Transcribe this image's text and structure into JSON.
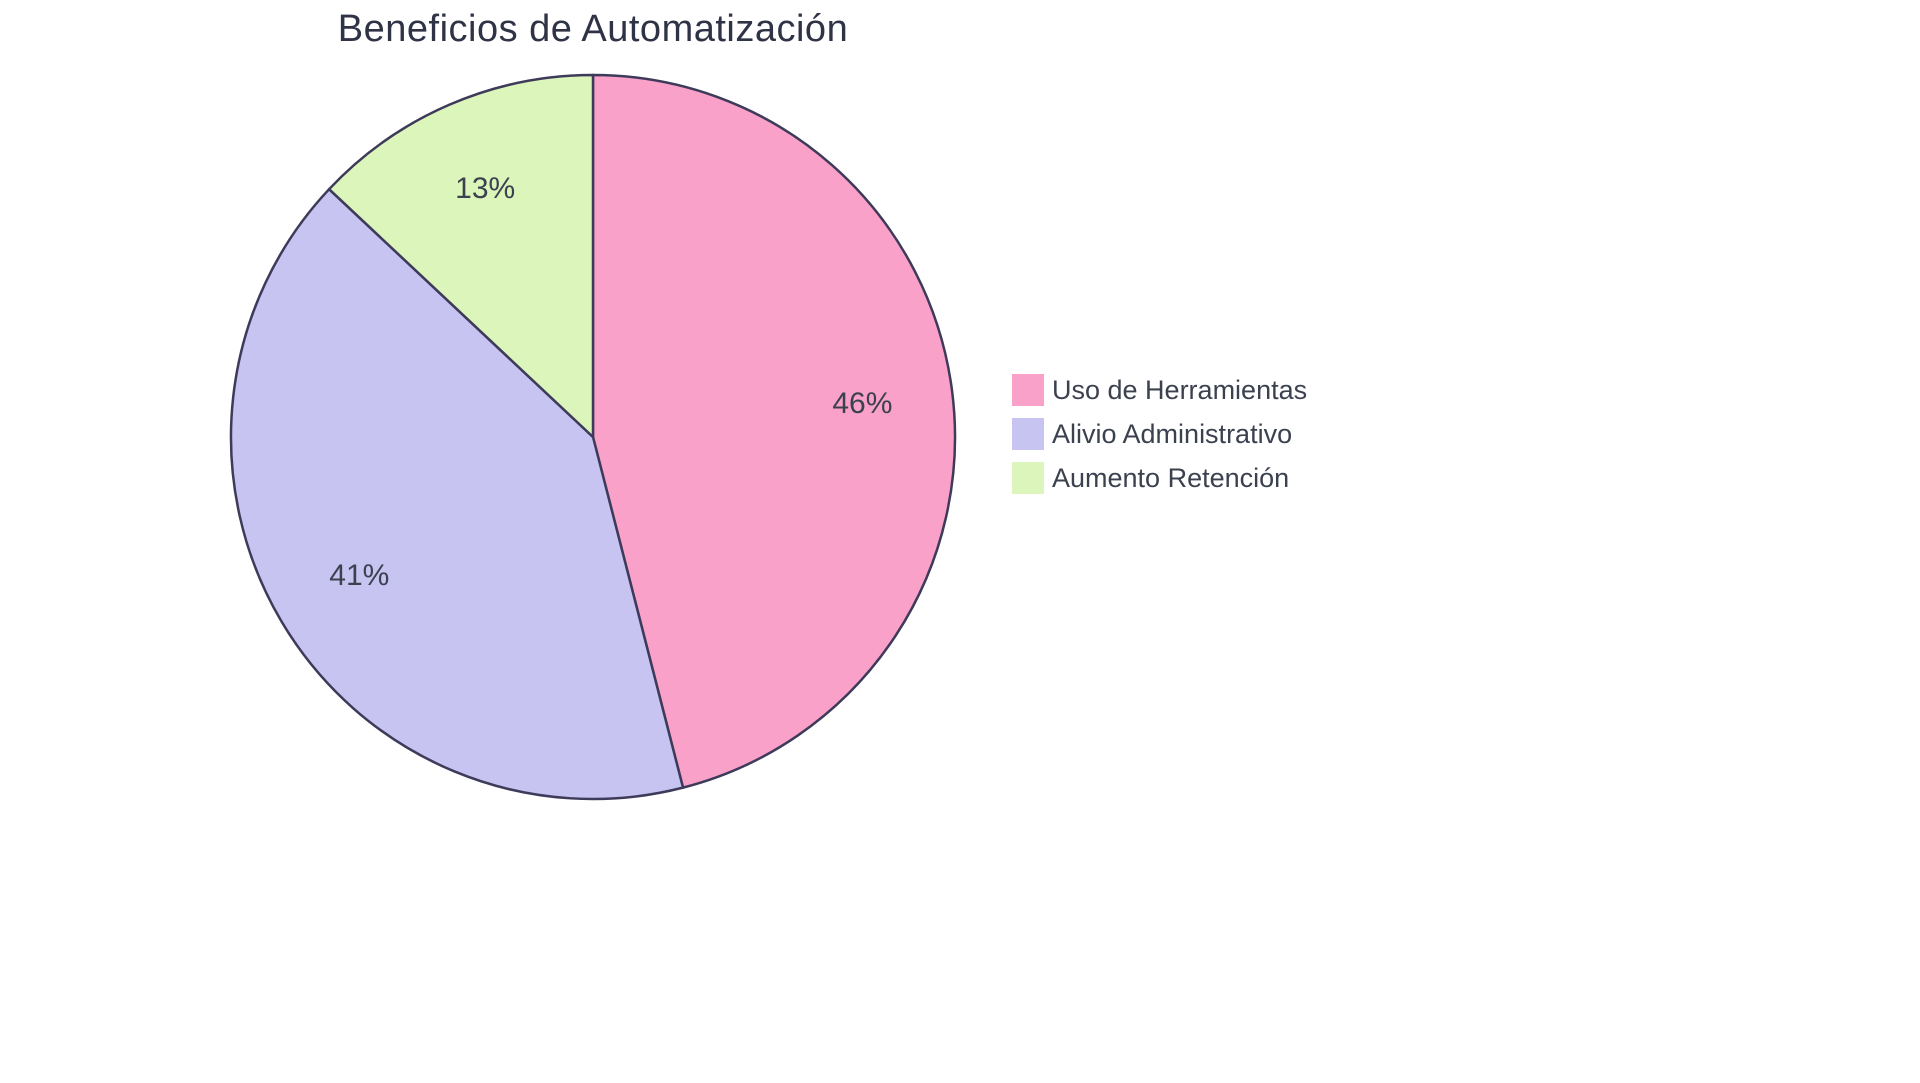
{
  "chart_data": {
    "type": "pie",
    "title": "Beneficios de Automatización",
    "slices": [
      {
        "label": "Uso de Herramientas",
        "value": 46,
        "percent_label": "46%",
        "color": "#F9A1C9"
      },
      {
        "label": "Alivio Administrativo",
        "value": 41,
        "percent_label": "41%",
        "color": "#C7C4F1"
      },
      {
        "label": "Aumento Retención",
        "value": 13,
        "percent_label": "13%",
        "color": "#DBF5BB"
      }
    ],
    "start_angle_deg": -90,
    "direction": "clockwise",
    "legend_position": "right",
    "stroke_color": "#3E3A5A",
    "label_color": "#3C4150",
    "title_color": "#2F3346"
  }
}
